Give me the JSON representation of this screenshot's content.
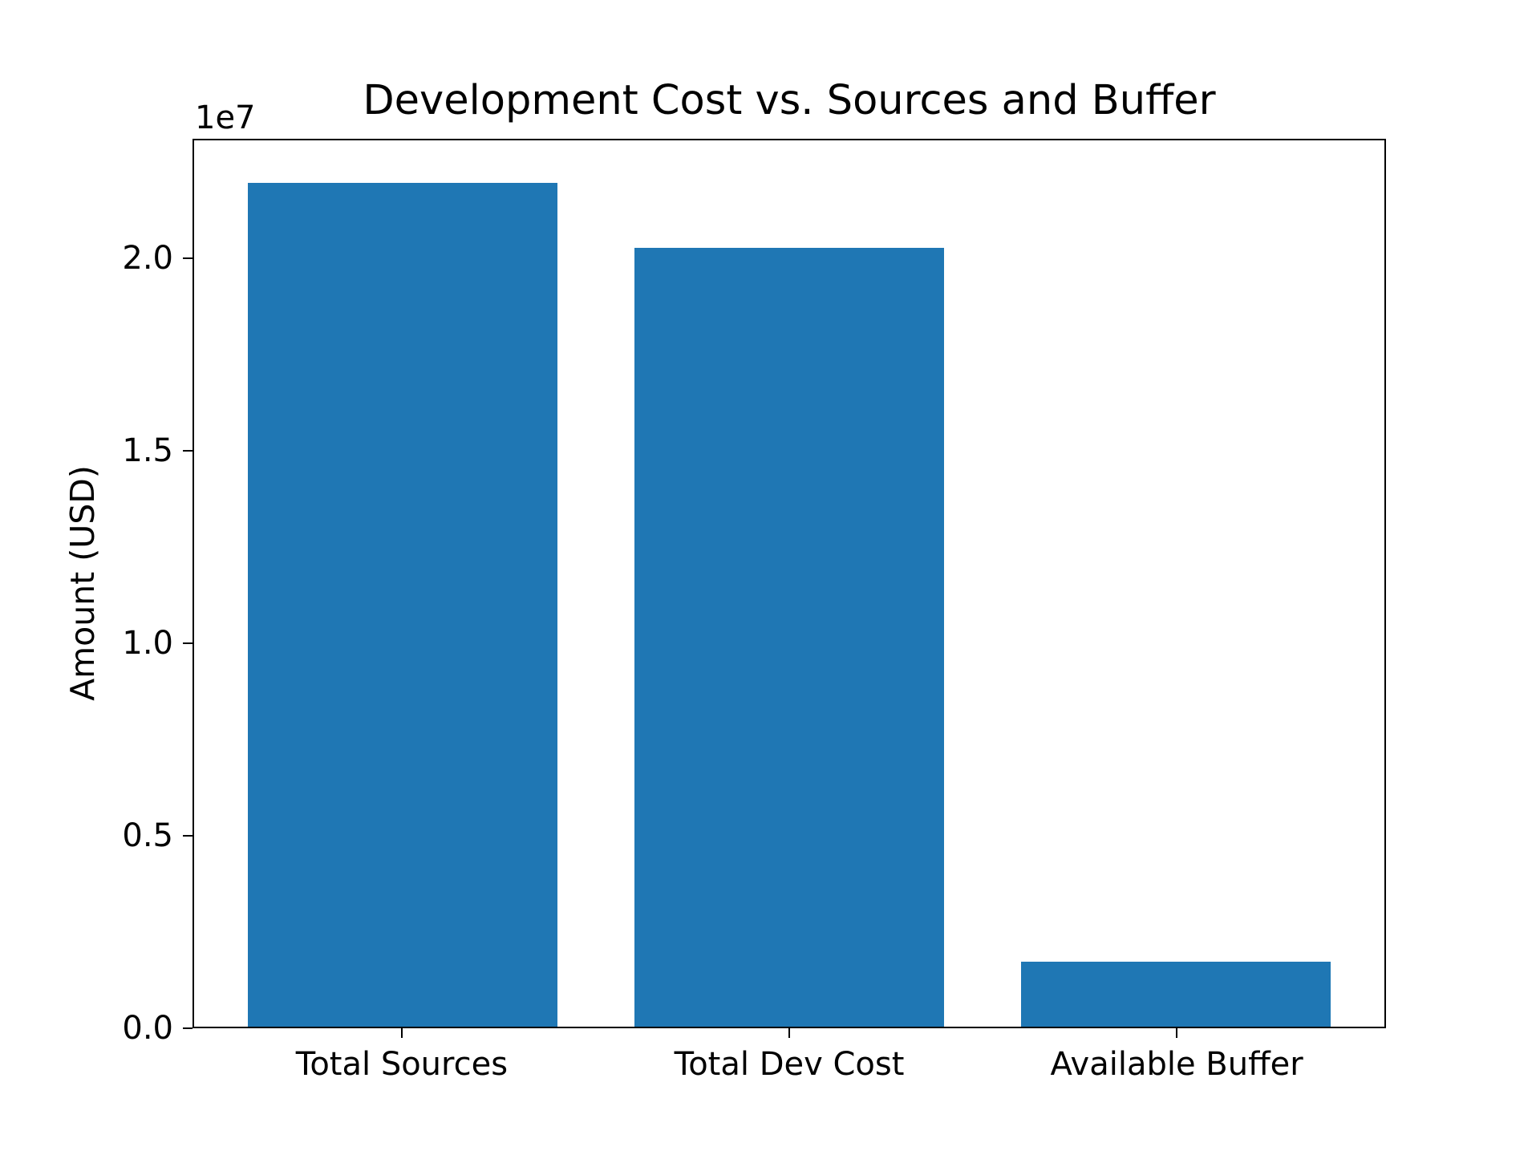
{
  "chart_data": {
    "type": "bar",
    "title": "Development Cost vs. Sources and Buffer",
    "xlabel": "",
    "ylabel": "Amount (USD)",
    "y_offset_text": "1e7",
    "categories": [
      "Total Sources",
      "Total Dev Cost",
      "Available Buffer"
    ],
    "values": [
      22000000,
      20300000,
      1700000
    ],
    "bar_color": "#1f77b4",
    "bar_width": 0.8,
    "xlim": [
      -0.54,
      2.54
    ],
    "ylim": [
      0,
      23100000
    ],
    "yticks": [
      {
        "value": 0,
        "label": "0.0"
      },
      {
        "value": 5000000,
        "label": "0.5"
      },
      {
        "value": 10000000,
        "label": "1.0"
      },
      {
        "value": 15000000,
        "label": "1.5"
      },
      {
        "value": 20000000,
        "label": "2.0"
      }
    ],
    "grid": false,
    "legend": "none"
  }
}
